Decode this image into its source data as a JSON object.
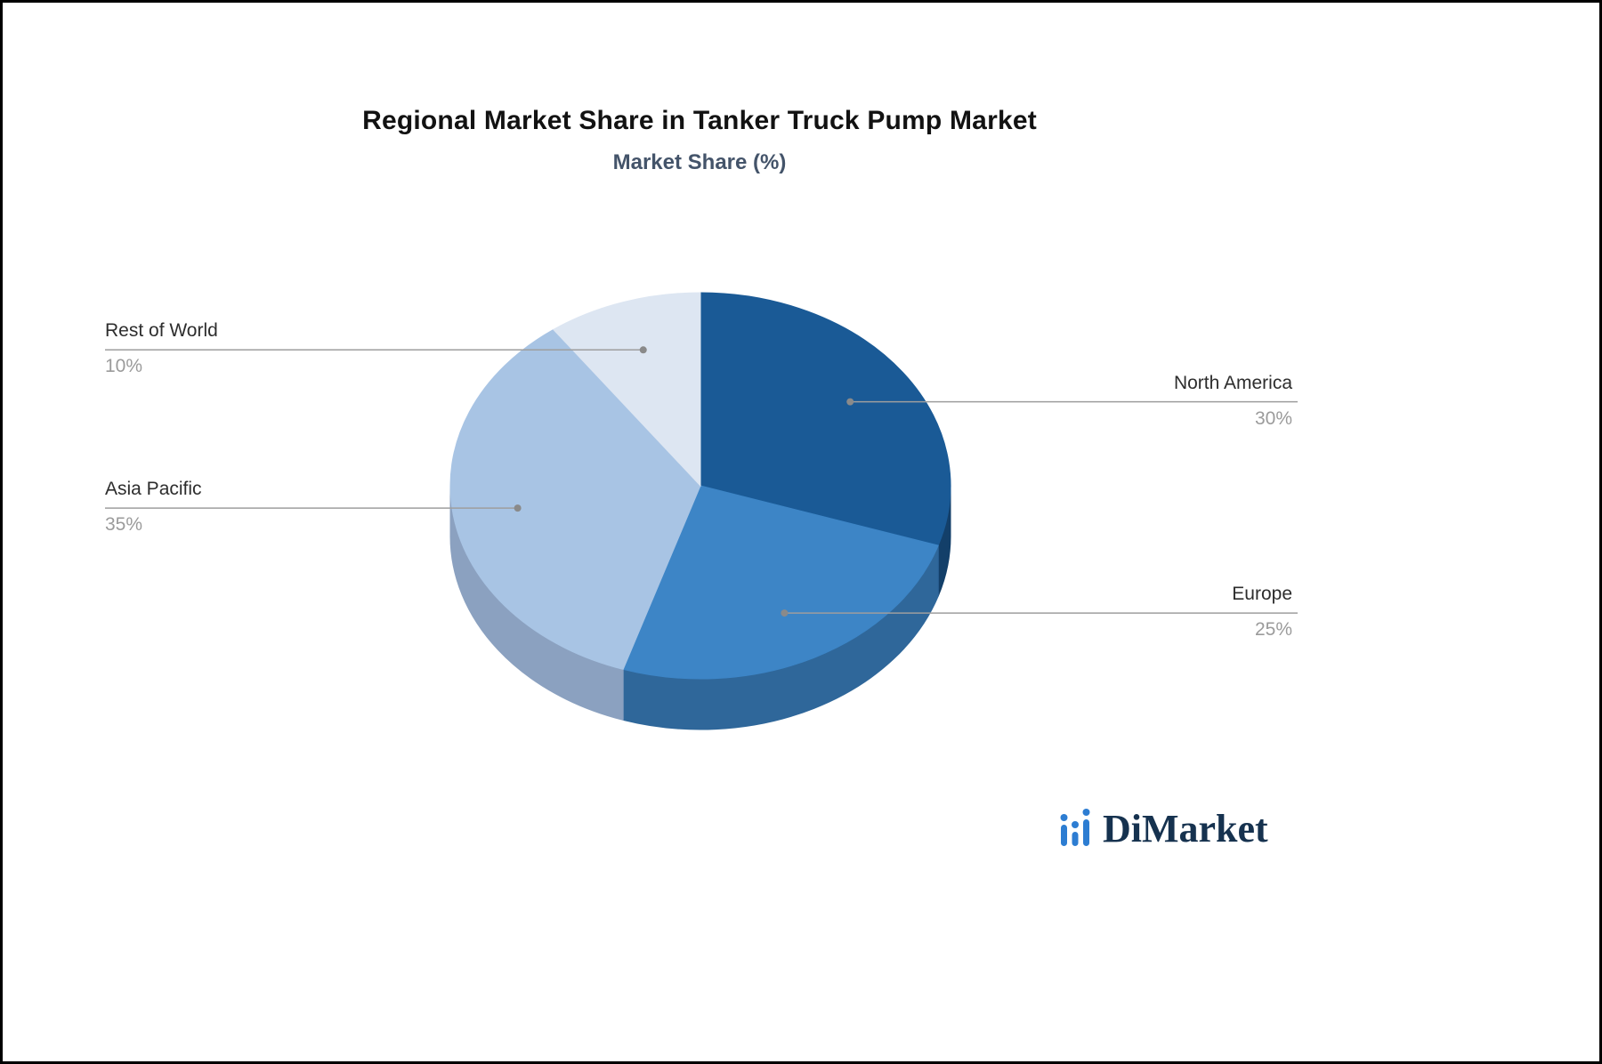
{
  "page": {
    "title": "Regional Market Share in Tanker Truck Pump Market",
    "subtitle": "Market Share (%)"
  },
  "chart_data": {
    "type": "pie",
    "title": "Regional Market Share in Tanker Truck Pump Market",
    "subtitle": "Market Share (%)",
    "unit": "%",
    "categories": [
      "North America",
      "Europe",
      "Asia Pacific",
      "Rest of World"
    ],
    "values": [
      30,
      25,
      35,
      10
    ],
    "start_angle_deg": 0,
    "direction": "clockwise",
    "effect": "3d-depth",
    "legend_position": "none",
    "labels_layout": "callouts",
    "callout_line_color": "#9e9e9e",
    "callout_dot_color": "#8a8a8a",
    "slices": [
      {
        "label": "North America",
        "value": 30,
        "display": "30%",
        "color": "#1a5a96",
        "side_color": "#133f69"
      },
      {
        "label": "Europe",
        "value": 25,
        "display": "25%",
        "color": "#3d85c6",
        "side_color": "#2f679a"
      },
      {
        "label": "Asia Pacific",
        "value": 35,
        "display": "35%",
        "color": "#a8c4e4",
        "side_color": "#8ba1c0"
      },
      {
        "label": "Rest of World",
        "value": 10,
        "display": "10%",
        "color": "#dde6f2",
        "side_color": "#adb6c4"
      }
    ]
  },
  "logo": {
    "text": "DiMarket",
    "accent_color": "#2d7dd2",
    "text_color": "#16324f"
  }
}
